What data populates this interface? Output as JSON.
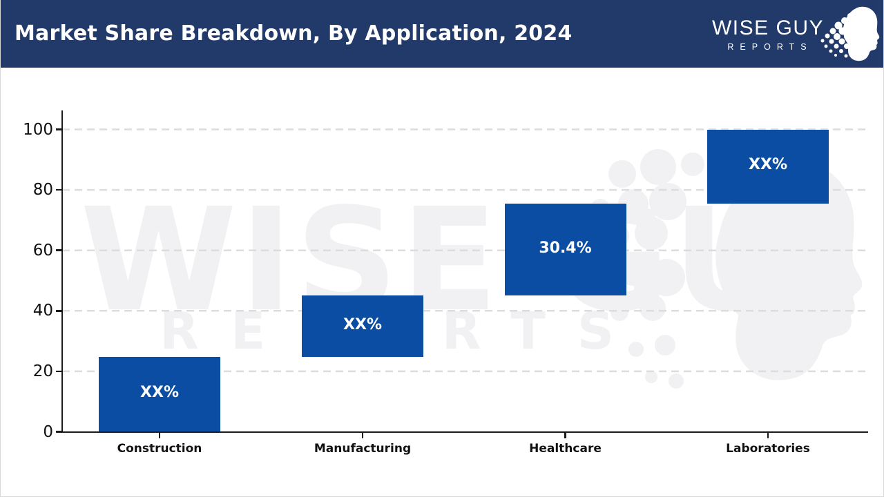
{
  "header": {
    "title": "Market Share Breakdown, By Application, 2024"
  },
  "logo": {
    "name": "WISE GUY",
    "sub": "REPORTS"
  },
  "watermark": {
    "line1": "WISE GU",
    "line2": "REPORTS"
  },
  "colors": {
    "header_bg": "#223A69",
    "bar": "#0B4DA2",
    "grid": "#dcdcdc",
    "axis": "#1a1a1a",
    "watermark": "#f1f1f4",
    "border": "#d8d8d8",
    "label_on_bar": "#ffffff"
  },
  "chart_data": {
    "type": "bar",
    "subtype": "floating-segment-waterfall",
    "title": "Market Share Breakdown, By Application, 2024",
    "categories": [
      "Construction",
      "Manufacturing",
      "Healthcare",
      "Laboratories"
    ],
    "segments": [
      {
        "category": "Construction",
        "from": 0,
        "to": 24.8,
        "label": "XX%"
      },
      {
        "category": "Manufacturing",
        "from": 24.8,
        "to": 45,
        "label": "XX%"
      },
      {
        "category": "Healthcare",
        "from": 45,
        "to": 75.4,
        "label": "30.4%",
        "value": 30.4
      },
      {
        "category": "Laboratories",
        "from": 75.4,
        "to": 100,
        "label": "XX%"
      }
    ],
    "ylim": [
      0,
      100
    ],
    "yticks": [
      0,
      20,
      40,
      60,
      80,
      100
    ],
    "xlabel": "",
    "ylabel": "",
    "grid": "horizontal-dashed",
    "legend": null
  }
}
